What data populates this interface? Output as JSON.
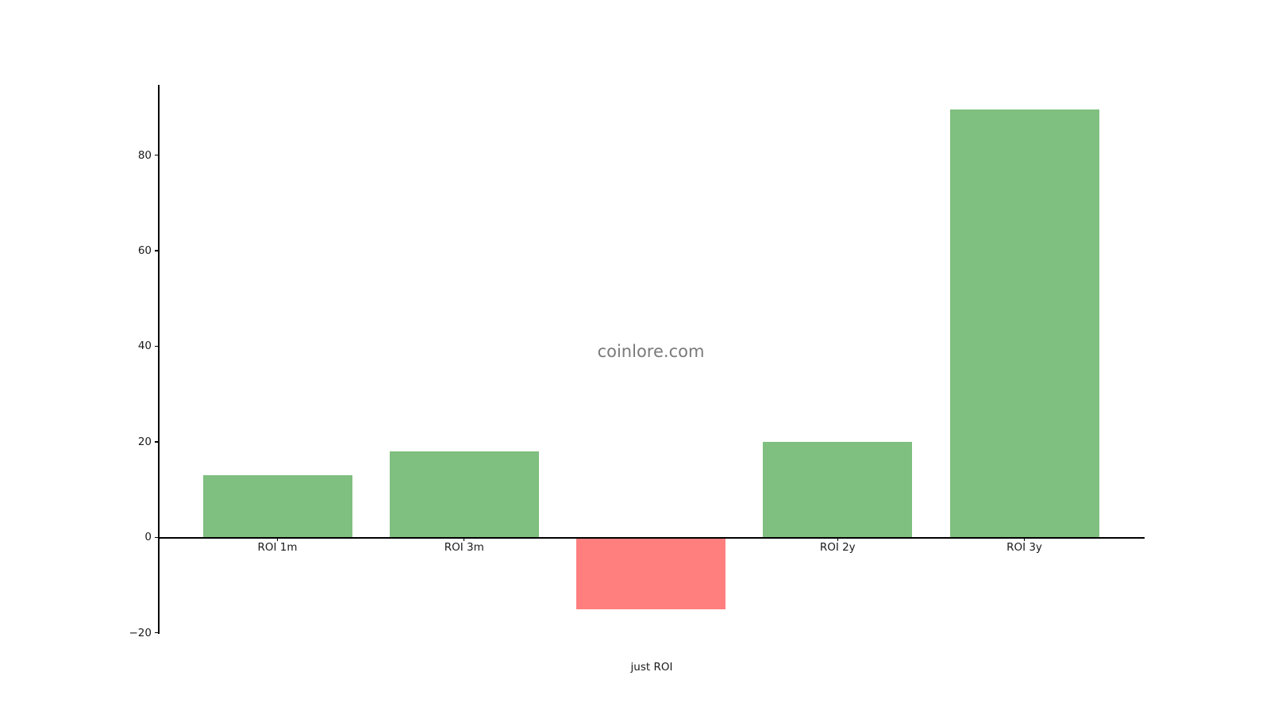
{
  "page": {
    "background": "#ffffff"
  },
  "watermark": {
    "text": "coinlore.com",
    "color": "#7a7a7a"
  },
  "chart_data": {
    "type": "bar",
    "title": "",
    "xlabel": "just ROI",
    "ylabel": "",
    "categories": [
      "ROI 1m",
      "ROI 3m",
      "",
      "ROI 2y",
      "ROI 3y"
    ],
    "values": [
      13,
      18,
      -15,
      20,
      89.5
    ],
    "bar_colors": [
      "#7fbf7f",
      "#7fbf7f",
      "#ff7f7f",
      "#7fbf7f",
      "#7fbf7f"
    ],
    "positive_color": "#7fbf7f",
    "negative_color": "#ff7f7f",
    "yticks": [
      -20,
      0,
      20,
      40,
      60,
      80
    ],
    "ylim": [
      -20.2,
      94.7
    ],
    "grid": false,
    "legend": "none",
    "axis_color": "#000000",
    "tick_text_color": "#1a1a1a"
  }
}
